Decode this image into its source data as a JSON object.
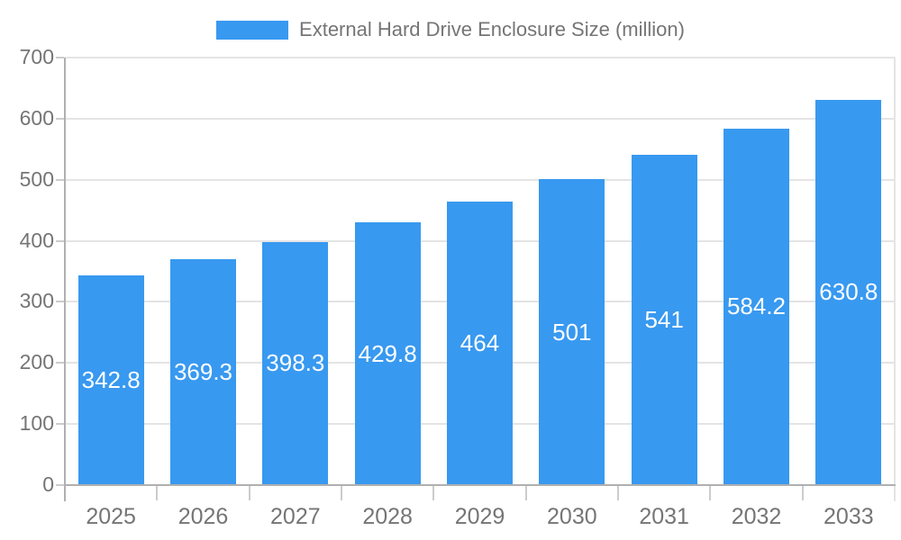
{
  "chart_data": {
    "type": "bar",
    "title": "External Hard Drive Enclosure Size (million)",
    "legend": {
      "position": "top-center",
      "label": "External Hard Drive Enclosure Size (million)"
    },
    "categories": [
      "2025",
      "2026",
      "2027",
      "2028",
      "2029",
      "2030",
      "2031",
      "2032",
      "2033"
    ],
    "values": [
      342.8,
      369.3,
      398.3,
      429.8,
      464,
      501,
      541,
      584.2,
      630.8
    ],
    "value_labels": [
      "342.8",
      "369.3",
      "398.3",
      "429.8",
      "464",
      "501",
      "541",
      "584.2",
      "630.8"
    ],
    "xlabel": "",
    "ylabel": "",
    "ylim": [
      0,
      700
    ],
    "ytick_step": 100,
    "ytick_labels": [
      "0",
      "100",
      "200",
      "300",
      "400",
      "500",
      "600",
      "700"
    ],
    "grid": true,
    "colors": {
      "bar": "#3899f0",
      "value_label": "#ffffff",
      "axis_text": "#757575",
      "legend_text": "#757575",
      "gridline": "#e4e4e4",
      "axis_line": "#b0b0b0",
      "tick": "#cccccc",
      "background": "#ffffff"
    }
  }
}
